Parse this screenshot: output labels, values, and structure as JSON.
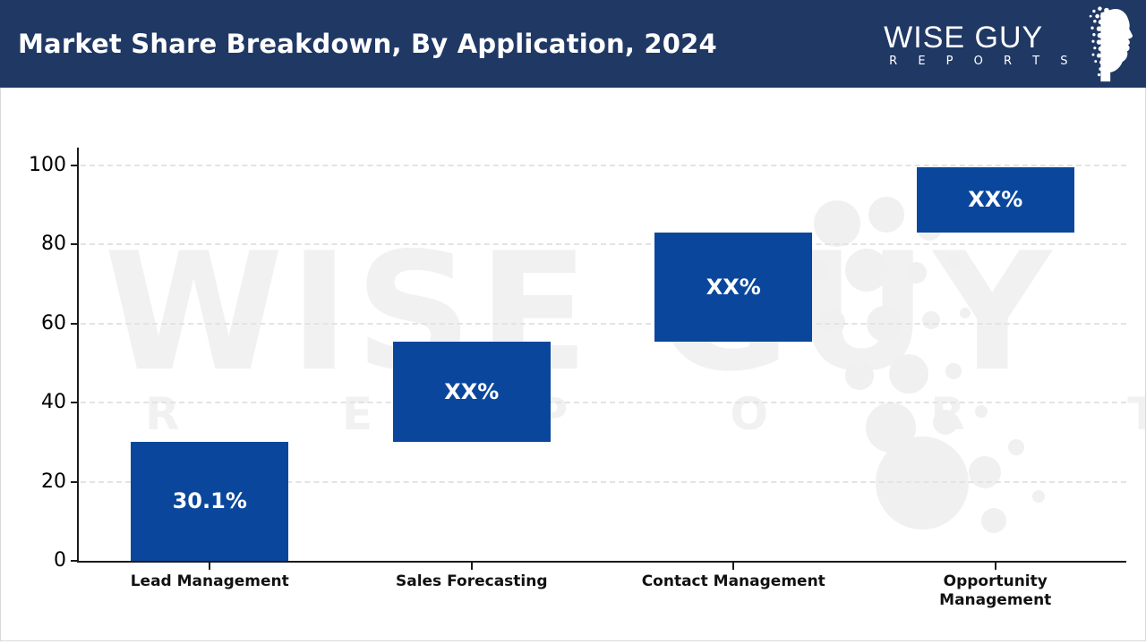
{
  "header": {
    "title": "Market Share Breakdown, By Application, 2024",
    "logo": {
      "name": "WISE GUY",
      "tagline": "R E P O R T S"
    }
  },
  "watermark": {
    "line1": "WISE GUY",
    "line2": "R E P O R T S"
  },
  "chart_data": {
    "type": "bar",
    "subtype": "floating-segment-waterfall",
    "title": "Market Share Breakdown, By Application, 2024",
    "categories": [
      "Lead Management",
      "Sales Forecasting",
      "Contact Management",
      "Opportunity\nManagement"
    ],
    "bars": [
      {
        "category": "Lead Management",
        "start": 0,
        "end": 30.1,
        "label": "30.1%"
      },
      {
        "category": "Sales Forecasting",
        "start": 30.1,
        "end": 55.5,
        "label": "XX%"
      },
      {
        "category": "Contact Management",
        "start": 55.5,
        "end": 83.0,
        "label": "XX%"
      },
      {
        "category": "Opportunity\nManagement",
        "start": 83.0,
        "end": 99.6,
        "label": "XX%"
      }
    ],
    "ylim": [
      0,
      100
    ],
    "yticks": [
      0,
      20,
      40,
      60,
      80,
      100
    ],
    "grid": true,
    "legend": "none",
    "xlabel": "",
    "ylabel": "",
    "bar_color": "#0a479c",
    "bar_label_color": "#ffffff",
    "axis_color": "#1a1a1a",
    "grid_color": "#e3e3e3",
    "header_color": "#203864"
  }
}
